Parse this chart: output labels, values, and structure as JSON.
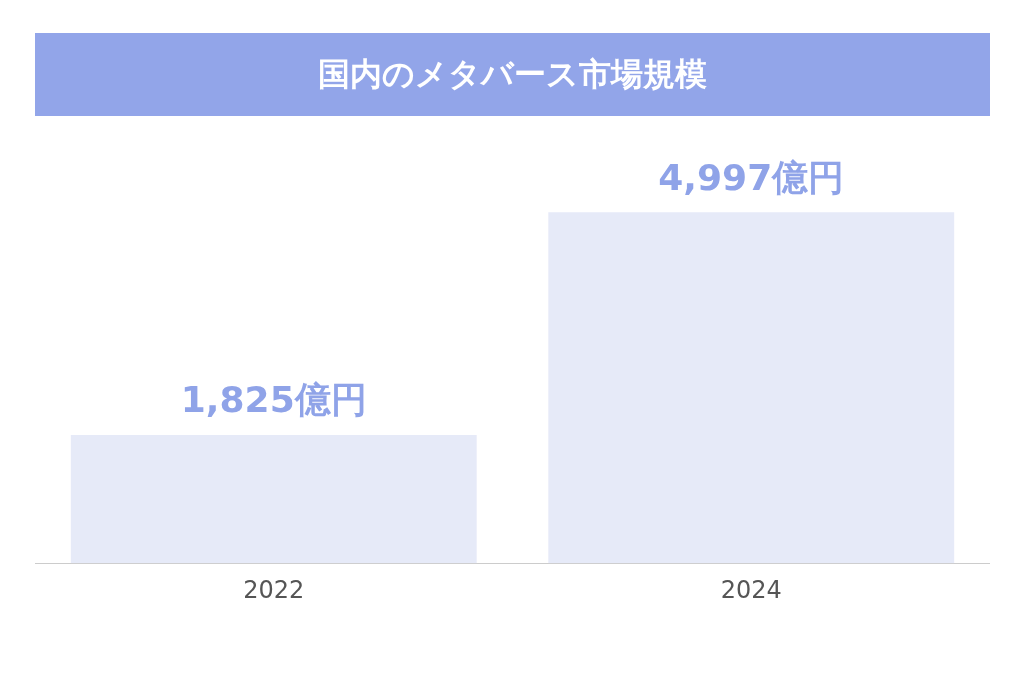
{
  "chart_data": {
    "type": "bar",
    "title": "国内のメタバース市場規模",
    "categories": [
      "2022",
      "2024"
    ],
    "values": [
      1825,
      4997
    ],
    "color": "#e6eaf8",
    "value_labels": [
      "1,825億円",
      "4,997億円"
    ],
    "grid": false,
    "legend": false
  }
}
